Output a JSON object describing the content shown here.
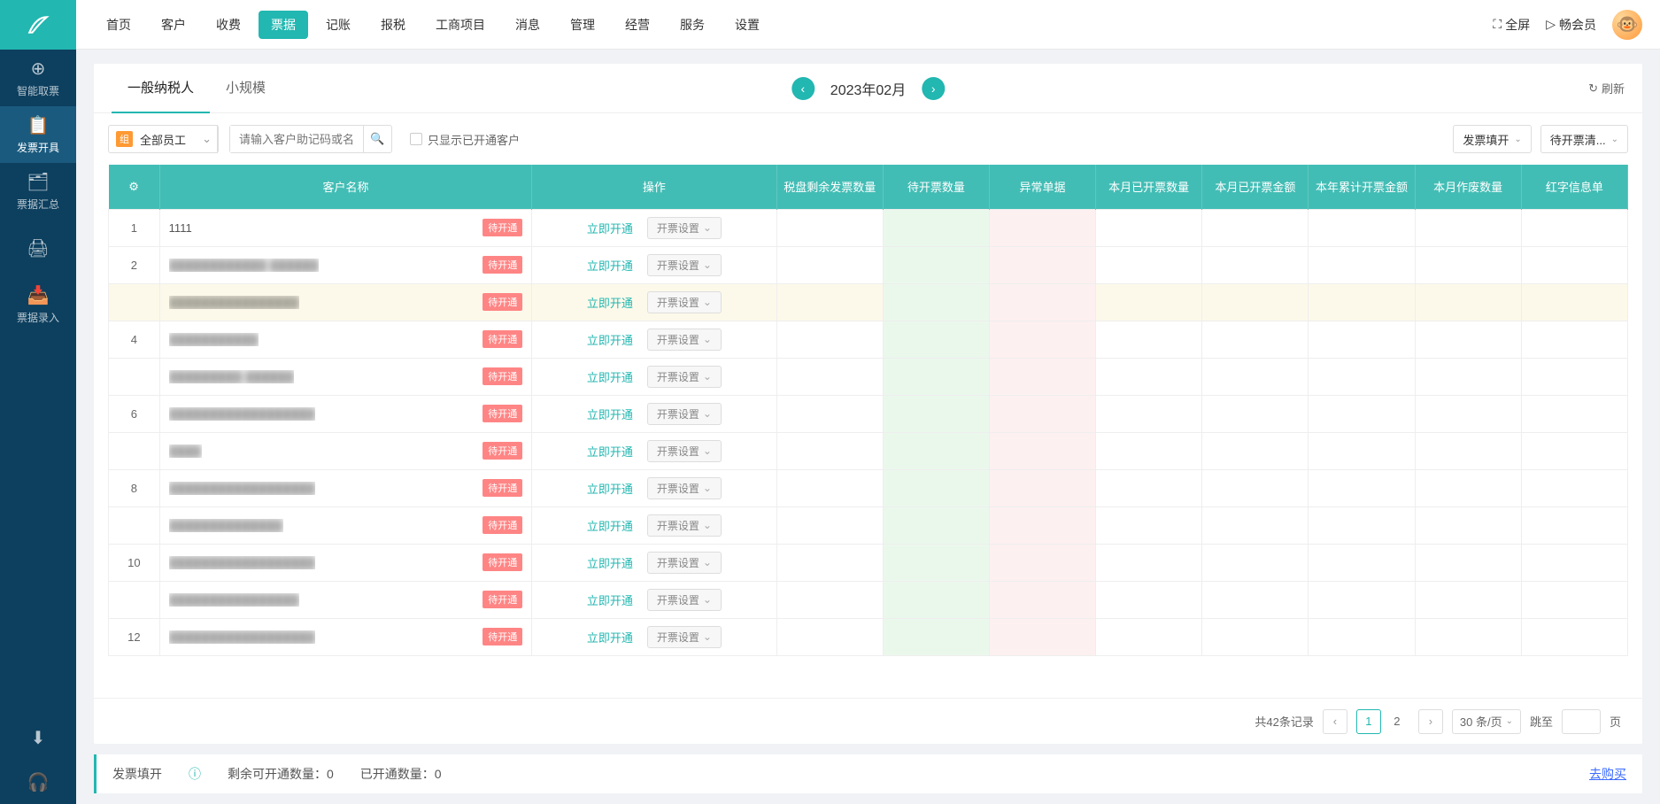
{
  "topnav": {
    "items": [
      "首页",
      "客户",
      "收费",
      "票据",
      "记账",
      "报税",
      "工商项目",
      "消息",
      "管理",
      "经营",
      "服务",
      "设置"
    ],
    "active_index": 3,
    "fullscreen": "全屏",
    "member": "畅会员"
  },
  "sidebar": {
    "items": [
      {
        "label": "智能取票",
        "icon": "⊕"
      },
      {
        "label": "发票开具",
        "icon": "📋"
      },
      {
        "label": "票据汇总",
        "icon": "🗂"
      },
      {
        "label": "",
        "icon": "🖨"
      },
      {
        "label": "票据录入",
        "icon": "📥"
      }
    ],
    "active_index": 1
  },
  "tabs": {
    "items": [
      "一般纳税人",
      "小规模"
    ],
    "active_index": 0
  },
  "date": {
    "label": "2023年02月"
  },
  "refresh_label": "刷新",
  "filters": {
    "employee_tag": "组",
    "employee_label": "全部员工",
    "search_placeholder": "请输入客户助记码或名称",
    "show_enabled_only": "只显示已开通客户",
    "invoice_fill": "发票填开",
    "pending_list": "待开票清..."
  },
  "table": {
    "head_gear": "⚙",
    "columns": [
      "客户名称",
      "操作",
      "税盘剩余发票数量",
      "待开票数量",
      "异常单据",
      "本月已开票数量",
      "本月已开票金额",
      "本年累计开票金额",
      "本月作废数量",
      "红字信息单"
    ],
    "badge": "待开通",
    "link_open": "立即开通",
    "setting_btn": "开票设置",
    "rows": [
      {
        "idx": "1",
        "name": "1111",
        "redact": false
      },
      {
        "idx": "2",
        "name": "████████████ ██████",
        "redact": true
      },
      {
        "idx": "",
        "name": "████████████████",
        "redact": true,
        "highlight": true
      },
      {
        "idx": "4",
        "name": "███████████",
        "redact": true
      },
      {
        "idx": "",
        "name": "█████████ ██████",
        "redact": true
      },
      {
        "idx": "6",
        "name": "██████████████████",
        "redact": true
      },
      {
        "idx": "",
        "name": "████",
        "redact": true
      },
      {
        "idx": "8",
        "name": "██████████████████",
        "redact": true
      },
      {
        "idx": "",
        "name": "██████████████",
        "redact": true
      },
      {
        "idx": "10",
        "name": "██████████████████",
        "redact": true
      },
      {
        "idx": "",
        "name": "████████████████",
        "redact": true
      },
      {
        "idx": "12",
        "name": "██████████████████",
        "redact": true
      }
    ]
  },
  "pagination": {
    "total_label": "共42条记录",
    "pages": [
      "1",
      "2"
    ],
    "active_page": 0,
    "page_size": "30 条/页",
    "jump_label": "跳至",
    "page_suffix": "页"
  },
  "footer": {
    "title": "发票填开",
    "remaining": "剩余可开通数量：0",
    "enabled": "已开通数量：0",
    "buy": "去购买"
  }
}
